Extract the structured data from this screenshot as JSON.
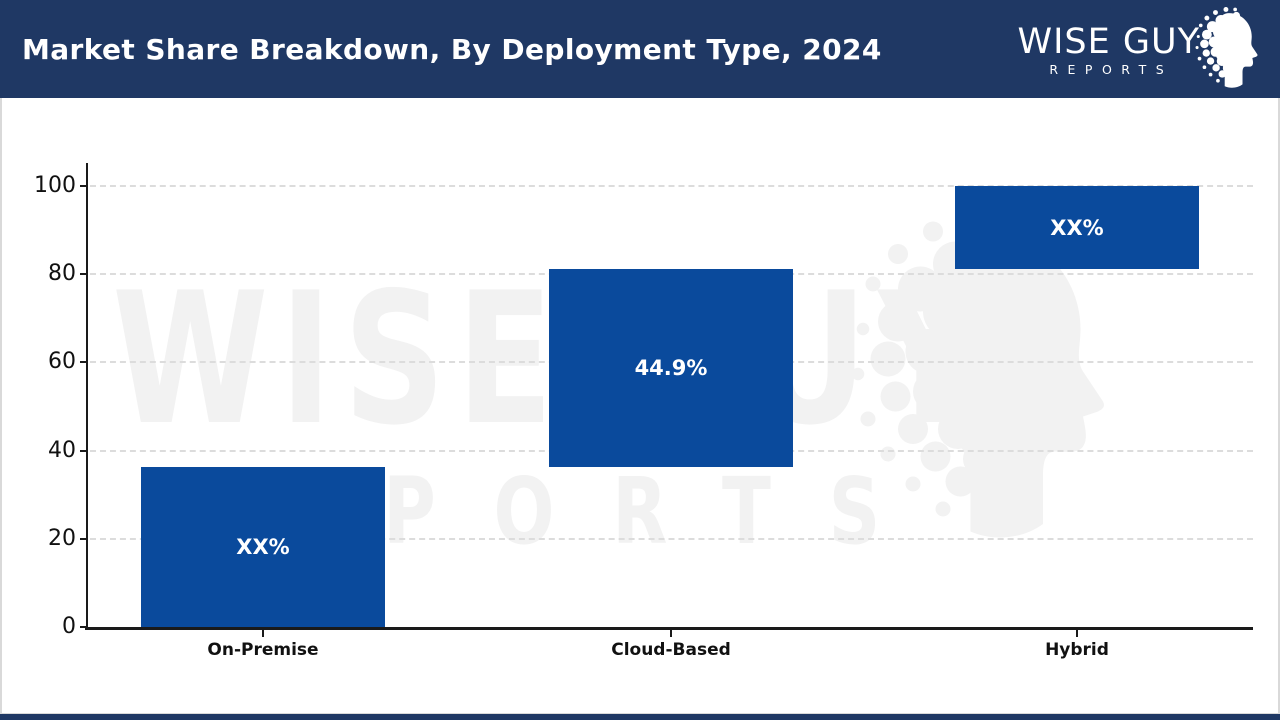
{
  "header": {
    "title": "Market Share Breakdown, By Deployment Type, 2024",
    "background_color": "#1f3864",
    "logo": {
      "line1": "WISE GUY",
      "line2": "REPORTS"
    }
  },
  "watermark": {
    "line1": "WISE GUY",
    "line2": "REPORTS"
  },
  "chart_data": {
    "type": "bar",
    "subtype": "waterfall",
    "title": "Market Share Breakdown, By Deployment Type, 2024",
    "categories": [
      "On-Premise",
      "Cloud-Based",
      "Hybrid"
    ],
    "segments": [
      {
        "category": "On-Premise",
        "start": 0,
        "end": 36.2,
        "value": 36.2,
        "label": "XX%"
      },
      {
        "category": "Cloud-Based",
        "start": 36.2,
        "end": 81.1,
        "value": 44.9,
        "label": "44.9%"
      },
      {
        "category": "Hybrid",
        "start": 81.1,
        "end": 100,
        "value": 18.9,
        "label": "XX%"
      }
    ],
    "ylim": [
      0,
      100
    ],
    "yticks": [
      0,
      20,
      40,
      60,
      80,
      100
    ],
    "grid": "horizontal-dashed",
    "gridline_color": "#dcdcdc",
    "bar_color": "#0a4a9c",
    "bar_label_color": "#ffffff",
    "axis_color": "#1a1a1a",
    "xlabel": "",
    "ylabel": ""
  },
  "footer": {
    "background_color": "#1f3864"
  }
}
